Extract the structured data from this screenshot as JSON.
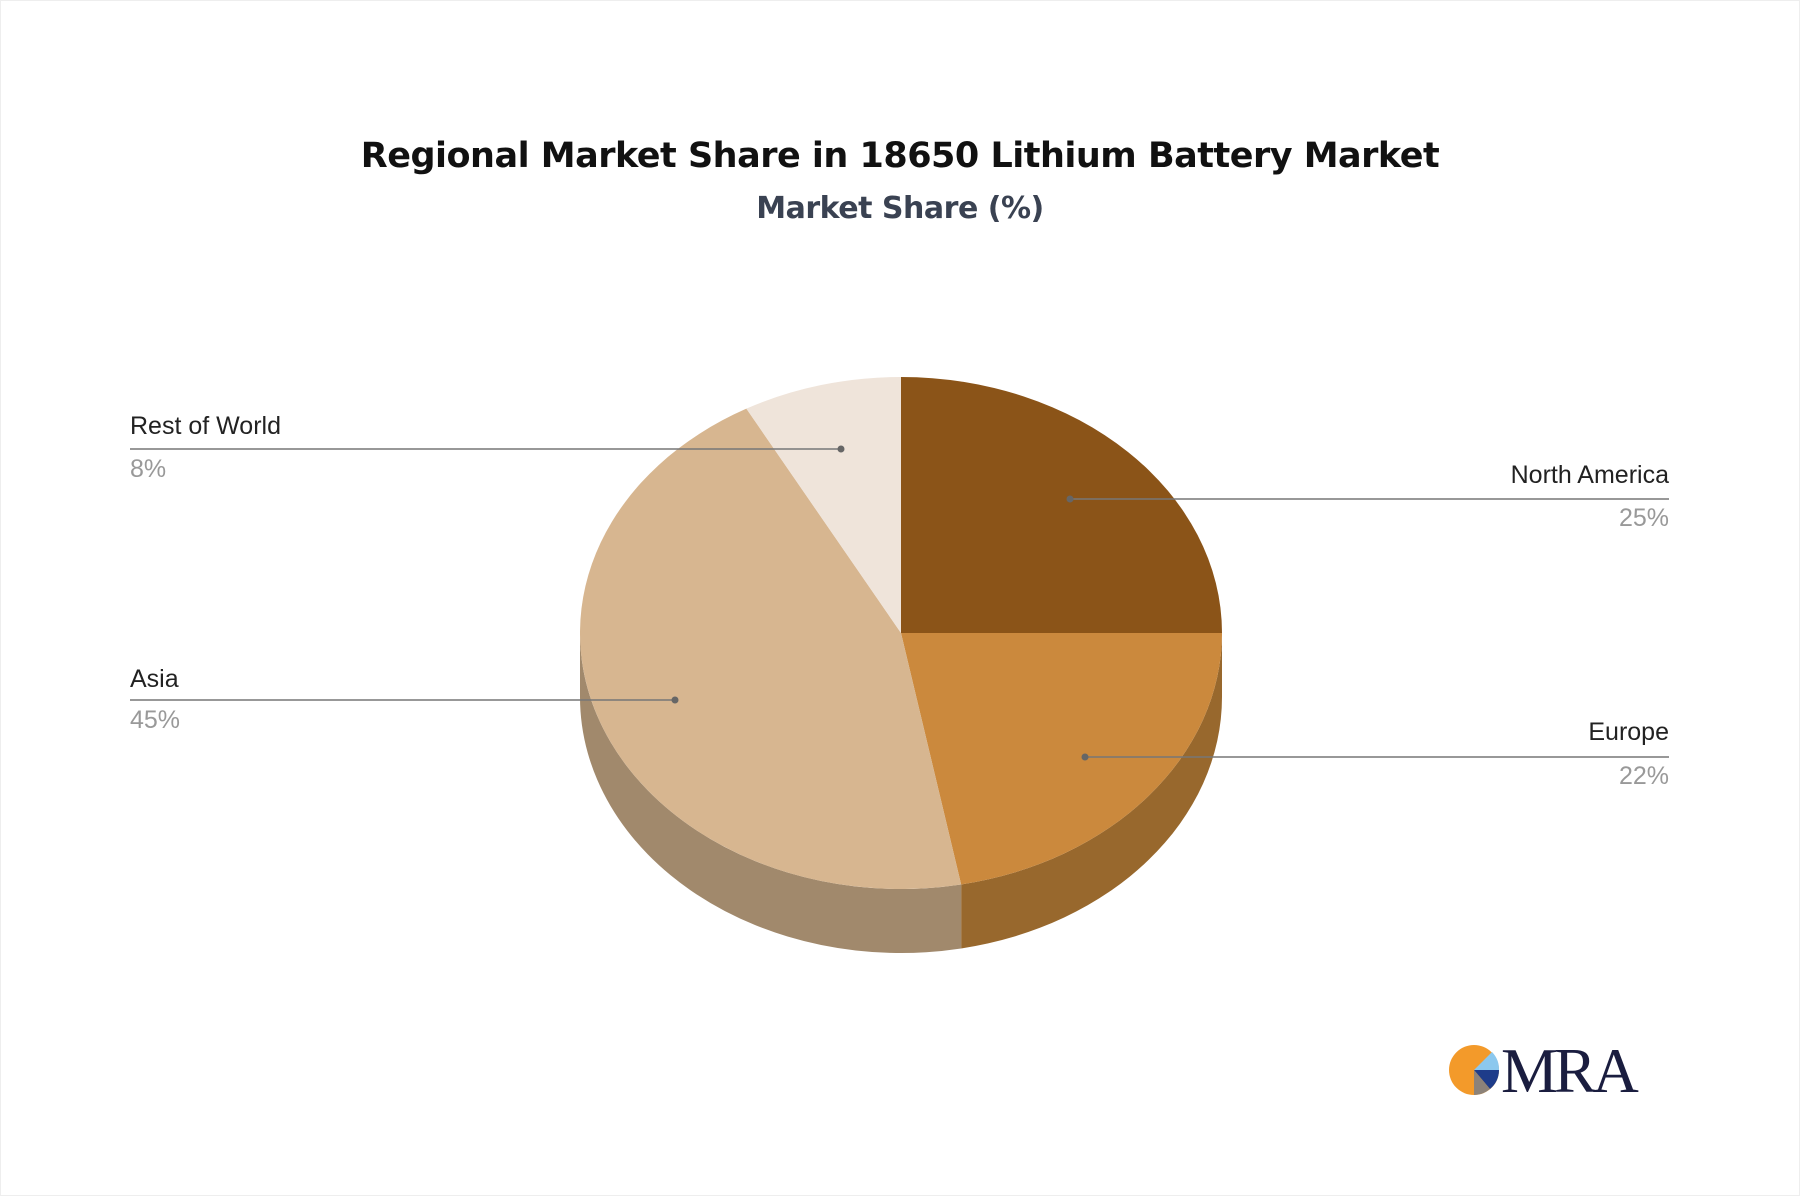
{
  "chart_data": {
    "type": "pie",
    "style": "3d",
    "title": "Regional Market Share in 18650 Lithium Battery Market",
    "subtitle": "Market Share (%)",
    "slices": [
      {
        "label": "North America",
        "value": 25,
        "display": "25%",
        "color": "#8B5418",
        "side_color": "#6E4313"
      },
      {
        "label": "Europe",
        "value": 22,
        "display": "22%",
        "color": "#CB893D",
        "side_color": "#98682D"
      },
      {
        "label": "Asia",
        "value": 45,
        "display": "45%",
        "color": "#D7B690",
        "side_color": "#A1896C"
      },
      {
        "label": "Rest of World",
        "value": 8,
        "display": "8%",
        "color": "#EFE4DA",
        "side_color": "#B3ABA3"
      }
    ],
    "legend": "callout-labels"
  },
  "logo": {
    "text": "MRA"
  }
}
